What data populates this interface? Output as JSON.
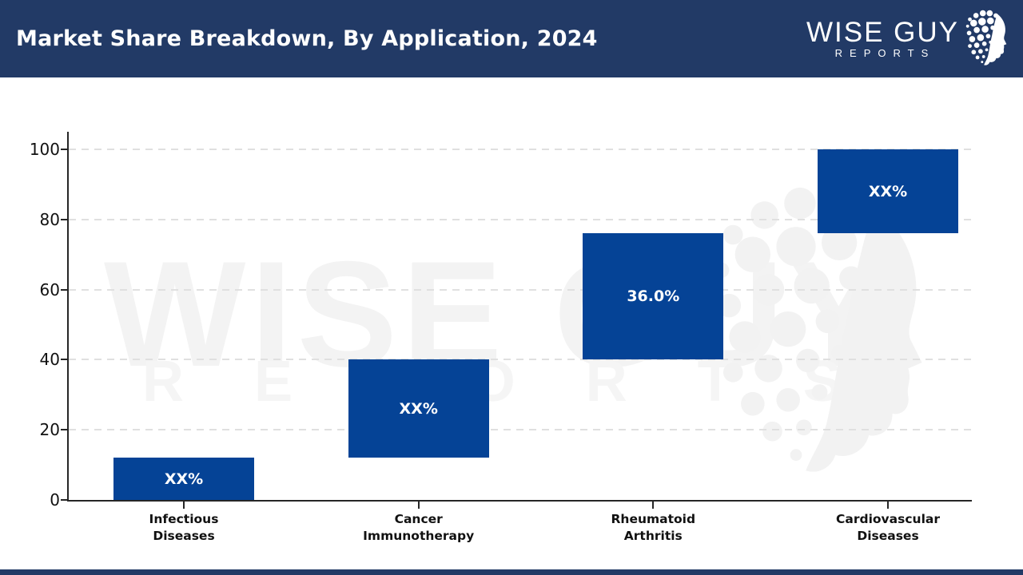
{
  "header": {
    "title": "Market Share Breakdown, By Application, 2024",
    "logo": {
      "wordmark": "WISE GUY",
      "subtext": "REPORTS"
    }
  },
  "watermark": {
    "wordmark": "WISE GUY",
    "subtext": "R E P O R T S"
  },
  "chart_data": {
    "type": "bar",
    "variant": "floating-waterfall",
    "title": "Market Share Breakdown, By Application, 2024",
    "xlabel": "",
    "ylabel": "",
    "ylim": [
      0,
      105
    ],
    "y_ticks": [
      0,
      20,
      40,
      60,
      80,
      100
    ],
    "grid": "horizontal-dashed",
    "legend": "none",
    "categories": [
      "Infectious\nDiseases",
      "Cancer\nImmunotherapy",
      "Rheumatoid\nArthritis",
      "Cardiovascular\nDiseases"
    ],
    "segments": [
      {
        "category": "Infectious Diseases",
        "start": 0,
        "end": 12,
        "value": 12,
        "label": "XX%"
      },
      {
        "category": "Cancer Immunotherapy",
        "start": 12,
        "end": 40,
        "value": 28,
        "label": "XX%"
      },
      {
        "category": "Rheumatoid Arthritis",
        "start": 40,
        "end": 76,
        "value": 36,
        "label": "36.0%"
      },
      {
        "category": "Cardiovascular Diseases",
        "start": 76,
        "end": 100,
        "value": 24,
        "label": "XX%"
      }
    ]
  },
  "colors": {
    "header_bg": "#223A66",
    "bar": "#054396",
    "bar_label": "#ffffff",
    "axis": "#262626",
    "grid": "#e0e0e0",
    "watermark": "#f3f3f3"
  }
}
